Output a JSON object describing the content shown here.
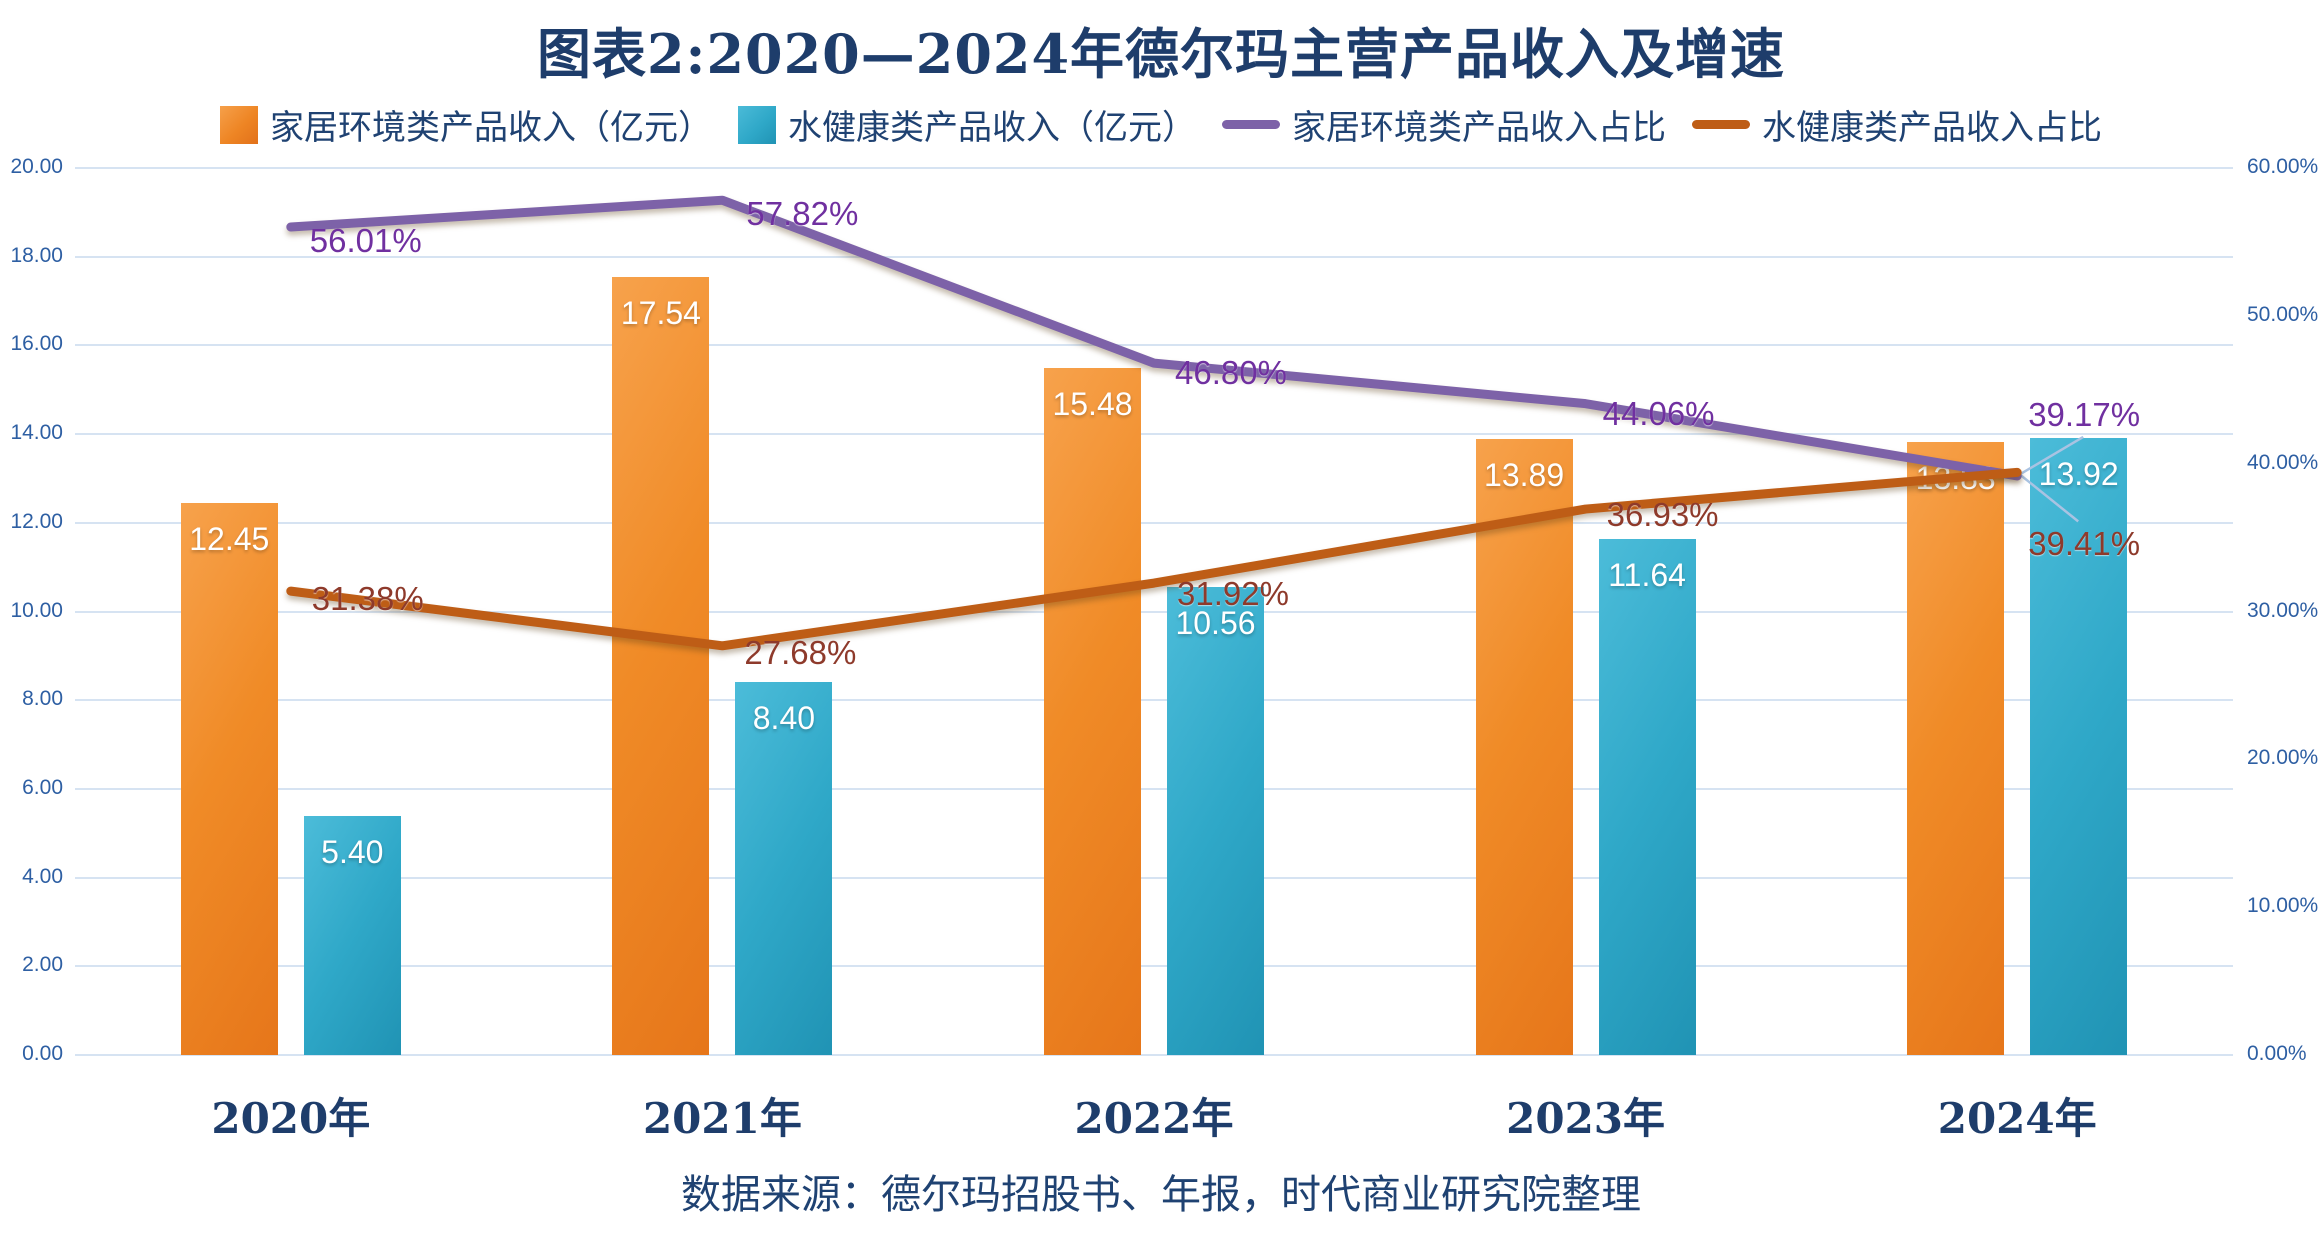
{
  "title": "图表2:2020—2024年德尔玛主营产品收入及增速",
  "source": "数据来源：德尔玛招股书、年报，时代商业研究院整理",
  "legend": {
    "items": [
      {
        "label": "家居环境类产品收入（亿元）",
        "marker": "orange-square"
      },
      {
        "label": "水健康类产品收入（亿元）",
        "marker": "teal-square"
      },
      {
        "label": "家居环境类产品收入占比",
        "marker": "purple-line"
      },
      {
        "label": "水健康类产品收入占比",
        "marker": "brown-line"
      }
    ]
  },
  "chart_data": {
    "type": "combo-bar-line",
    "categories": [
      "2020年",
      "2021年",
      "2022年",
      "2023年",
      "2024年"
    ],
    "bar_series": [
      {
        "name": "家居环境类产品收入（亿元）",
        "color": "#F08B27",
        "values": [
          12.45,
          17.54,
          15.48,
          13.89,
          13.83
        ],
        "labels": [
          "12.45",
          "17.54",
          "15.48",
          "13.89",
          "13.83"
        ]
      },
      {
        "name": "水健康类产品收入（亿元）",
        "color": "#2FA8C8",
        "values": [
          5.4,
          8.4,
          10.56,
          11.64,
          13.92
        ],
        "labels": [
          "5.40",
          "8.40",
          "10.56",
          "11.64",
          "13.92"
        ]
      }
    ],
    "line_series": [
      {
        "name": "家居环境类产品收入占比",
        "color": "#7D62A8",
        "label_color": "#7030A0",
        "values": [
          56.01,
          57.82,
          46.8,
          44.06,
          39.17
        ],
        "labels": [
          "56.01%",
          "57.82%",
          "46.80%",
          "44.06%",
          "39.17%"
        ]
      },
      {
        "name": "水健康类产品收入占比",
        "color": "#BE5D16",
        "label_color": "#8E3A2B",
        "values": [
          31.38,
          27.68,
          31.92,
          36.93,
          39.41
        ],
        "labels": [
          "31.38%",
          "27.68%",
          "31.92%",
          "36.93%",
          "39.41%"
        ]
      }
    ],
    "left_axis": {
      "min": 0,
      "max": 20,
      "ticks": [
        "20.00",
        "18.00",
        "16.00",
        "14.00",
        "12.00",
        "10.00",
        "8.00",
        "6.00",
        "4.00",
        "2.00",
        "0.00"
      ]
    },
    "right_axis": {
      "min": 0,
      "max": 60,
      "ticks": [
        "60.00%",
        "50.00%",
        "40.00%",
        "30.00%",
        "20.00%",
        "10.00%",
        "0.00%"
      ]
    },
    "grid": true,
    "legend_position": "top",
    "accent_colors": {
      "navy_text": "#1E3D6B",
      "axis_text": "#2E5FA3",
      "gridline": "#D6E3F2"
    }
  }
}
